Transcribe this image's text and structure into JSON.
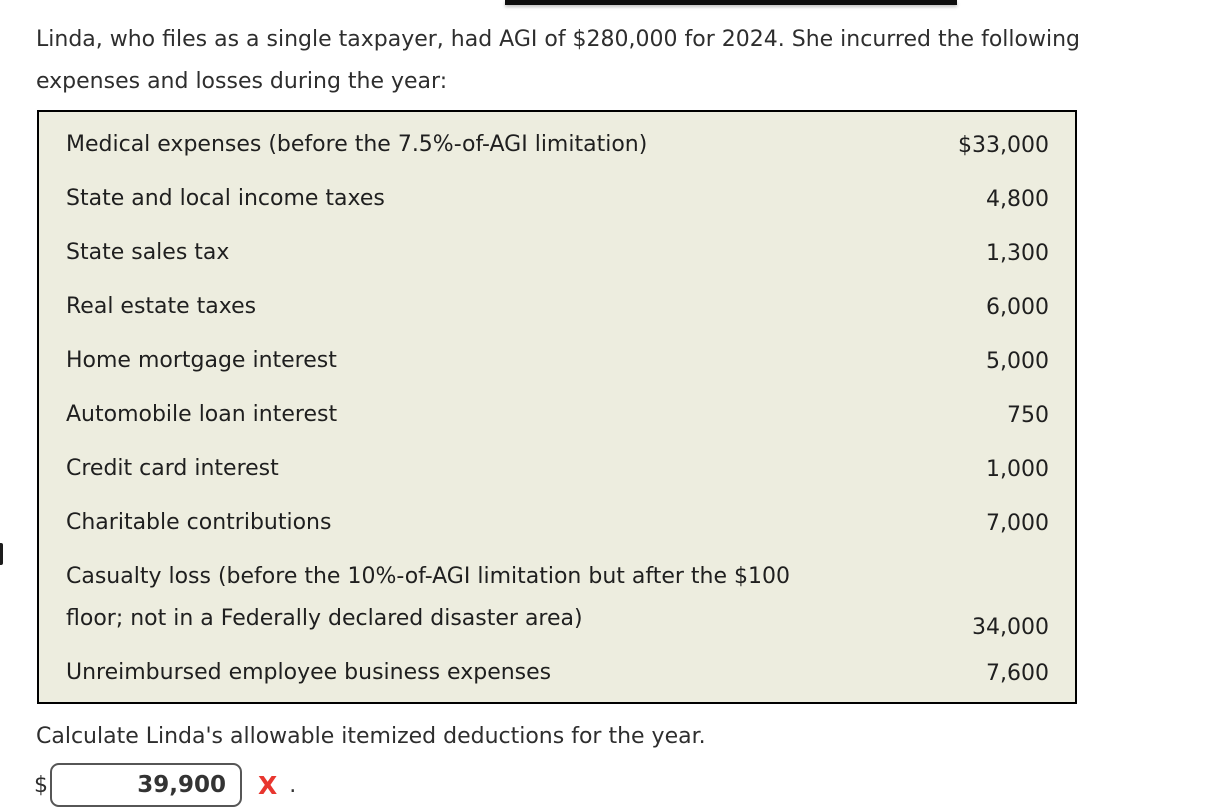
{
  "intro": {
    "line1": "Linda, who files as a single taxpayer, had AGI of $280,000 for 2024. She incurred the following",
    "line2": "expenses and losses during the year:"
  },
  "expense_table": {
    "rows": [
      {
        "label": "Medical expenses (before the 7.5%-of-AGI limitation)",
        "amount": "$33,000"
      },
      {
        "label": "State and local income taxes",
        "amount": "4,800"
      },
      {
        "label": "State sales tax",
        "amount": "1,300"
      },
      {
        "label": "Real estate taxes",
        "amount": "6,000"
      },
      {
        "label": "Home mortgage interest",
        "amount": "5,000"
      },
      {
        "label": "Automobile loan interest",
        "amount": "750"
      },
      {
        "label": "Credit card interest",
        "amount": "1,000"
      },
      {
        "label": "Charitable contributions",
        "amount": "7,000"
      },
      {
        "label": "Casualty loss (before the 10%-of-AGI limitation but after the $100",
        "label2": "floor; not in a Federally declared disaster area)",
        "amount": "34,000"
      },
      {
        "label": "Unreimbursed employee business expenses",
        "amount": "7,600"
      }
    ]
  },
  "question": {
    "text": "Calculate Linda's allowable itemized deductions for the year.",
    "currency_prefix": "$",
    "trailing_period": "."
  },
  "answer": {
    "value": "39,900",
    "status": "incorrect",
    "incorrect_mark": "X"
  },
  "colors": {
    "table_background": "#ededdf",
    "table_border": "#000000",
    "incorrect_red": "#e8362f",
    "input_border": "#565656",
    "text": "#2e2e2e"
  }
}
